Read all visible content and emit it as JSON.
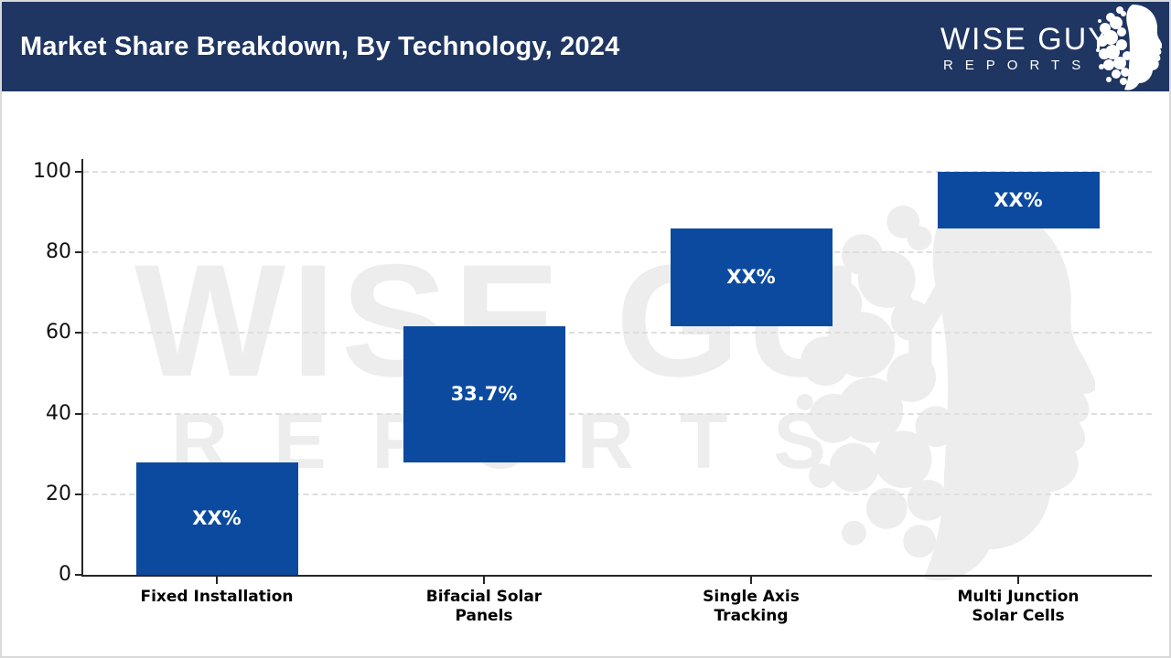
{
  "header": {
    "title": "Market Share Breakdown, By Technology, 2024",
    "logo": {
      "line1": "WISE GUY",
      "line2": "REPORTS"
    }
  },
  "watermark": {
    "line1": "WISE GUY",
    "line2": "REPORTS"
  },
  "chart_data": {
    "type": "bar",
    "subtype": "floating-waterfall",
    "title": "Market Share Breakdown, By Technology, 2024",
    "categories": [
      "Fixed Installation",
      "Bifacial Solar Panels",
      "Single Axis Tracking",
      "Multi Junction Solar Cells"
    ],
    "category_lines": [
      [
        "Fixed Installation"
      ],
      [
        "Bifacial Solar",
        "Panels"
      ],
      [
        "Single Axis",
        "Tracking"
      ],
      [
        "Multi Junction",
        "Solar Cells"
      ]
    ],
    "segments": [
      {
        "category": "Fixed Installation",
        "start": 0,
        "end": 28,
        "label": "XX%"
      },
      {
        "category": "Bifacial Solar Panels",
        "start": 28,
        "end": 61.7,
        "label": "33.7%"
      },
      {
        "category": "Single Axis Tracking",
        "start": 61.7,
        "end": 86,
        "label": "XX%"
      },
      {
        "category": "Multi Junction Solar Cells",
        "start": 86,
        "end": 100,
        "label": "XX%"
      }
    ],
    "yticks": [
      0,
      20,
      40,
      60,
      80,
      100
    ],
    "ylim": [
      0,
      103
    ],
    "xlabel": "",
    "ylabel": "",
    "grid": "horizontal-dashed",
    "legend": "none"
  },
  "colors": {
    "header_bg": "#1F3562",
    "bar": "#0B4A9F",
    "axis": "#262626",
    "gridline": "#DEDEDE",
    "watermark": "#EDEDED",
    "page_border": "#D9D9D9",
    "bar_label": "#FFFFFF"
  }
}
